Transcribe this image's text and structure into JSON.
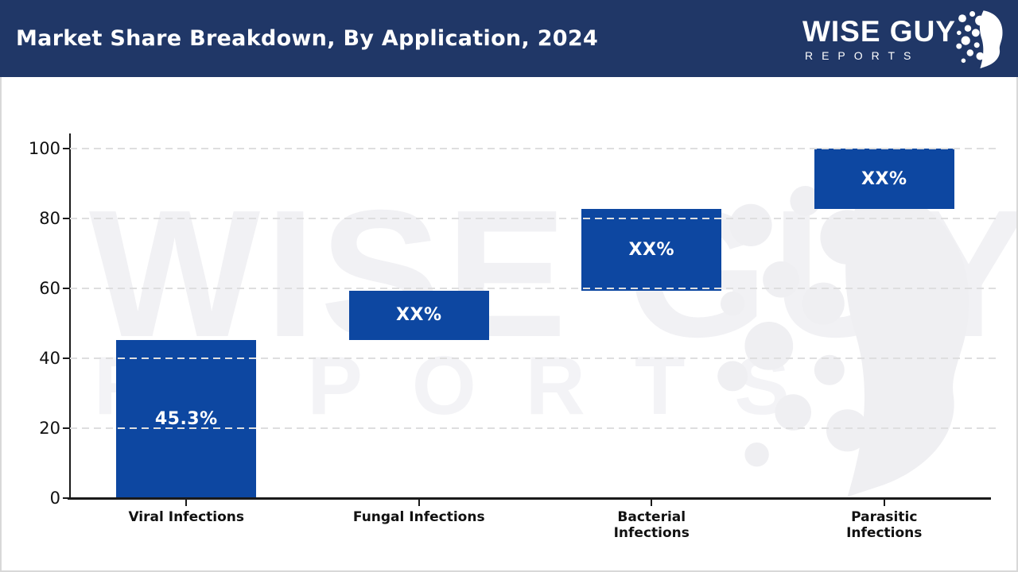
{
  "header": {
    "title": "Market Share Breakdown, By Application, 2024",
    "brand": {
      "line1": "WISE GUY",
      "line2": "REPORTS"
    },
    "colors": {
      "background": "#203767",
      "text": "#ffffff"
    }
  },
  "watermark": {
    "line1": "WISE GUY",
    "line2": "REPORTS",
    "color": "#f1f1f4"
  },
  "chart_data": {
    "type": "bar",
    "subtype": "waterfall",
    "title": "Market Share Breakdown, By Application, 2024",
    "xlabel": "",
    "ylabel": "",
    "categories": [
      "Viral Infections",
      "Fungal Infections",
      "Bacterial\nInfections",
      "Parasitic\nInfections"
    ],
    "segments": [
      {
        "category": "Viral Infections",
        "start": 0,
        "end": 45.3,
        "label": "45.3%"
      },
      {
        "category": "Fungal Infections",
        "start": 45.3,
        "end": 59.3,
        "label": "XX%"
      },
      {
        "category": "Bacterial\nInfections",
        "start": 59.3,
        "end": 82.7,
        "label": "XX%"
      },
      {
        "category": "Parasitic\nInfections",
        "start": 82.7,
        "end": 100,
        "label": "XX%"
      }
    ],
    "ylim": [
      0,
      100
    ],
    "yticks": [
      0,
      20,
      40,
      60,
      80,
      100
    ],
    "grid": "horizontal-dashed",
    "legend": "none",
    "bar_color": "#0d47a1",
    "bar_label_color": "#ffffff",
    "axis_color": "#1a1a1a"
  }
}
